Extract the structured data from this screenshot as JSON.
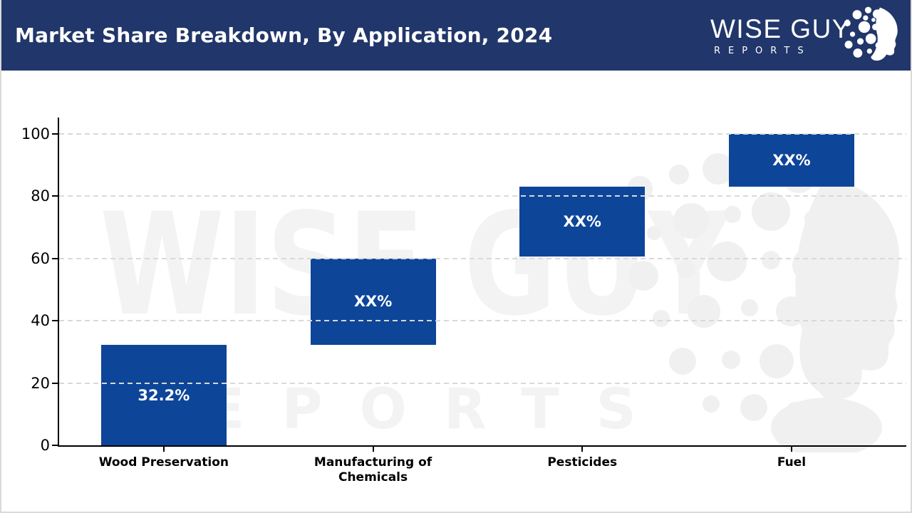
{
  "header": {
    "title": "Market Share Breakdown, By Application, 2024",
    "logo": {
      "wordmark": "WISE GUY",
      "subtext": "REPORTS"
    }
  },
  "watermark": {
    "line1": "WISE GUY",
    "line2": "REPORTS"
  },
  "colors": {
    "header_bg": "#21366a",
    "bar": "#0d4599",
    "grid": "#d9d9d9",
    "axis": "#000000",
    "bar_label": "#ffffff",
    "watermark": "#f3f3f3"
  },
  "chart_data": {
    "type": "bar",
    "subtype": "waterfall",
    "title": "Market Share Breakdown, By Application, 2024",
    "categories": [
      "Wood Preservation",
      "Manufacturing of Chemicals",
      "Pesticides",
      "Fuel"
    ],
    "bars": [
      {
        "category": "Wood Preservation",
        "start": 0,
        "end": 32.2,
        "value_label": "32.2%"
      },
      {
        "category": "Manufacturing of Chemicals",
        "start": 32.2,
        "end": 60,
        "value_label": "XX%"
      },
      {
        "category": "Pesticides",
        "start": 60.5,
        "end": 83,
        "value_label": "XX%"
      },
      {
        "category": "Fuel",
        "start": 83,
        "end": 100,
        "value_label": "XX%"
      }
    ],
    "xlabel": "",
    "ylabel": "",
    "ylim": [
      0,
      105
    ],
    "yticks": [
      0,
      20,
      40,
      60,
      80,
      100
    ],
    "grid": "horizontal-dashed-over-bars",
    "legend": "none"
  }
}
